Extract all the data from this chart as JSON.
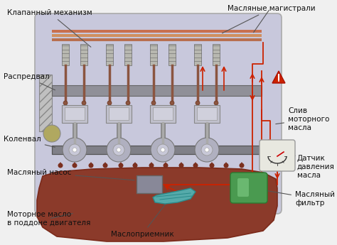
{
  "background_color": "#f0f0f0",
  "engine_body_color": "#c8c8dc",
  "engine_body_edge": "#aaaaaa",
  "oil_pan_color": "#8B3A2A",
  "oil_pan_edge": "#7B2A1A",
  "arrow_color": "#cc2200",
  "line_color": "#555555",
  "label_color": "#111111",
  "label_fontsize": 7.5,
  "labels": {
    "valve_mechanism": "Клапанный механизм",
    "cam_shaft": "Распредвал",
    "crank_shaft": "Коленвал",
    "oil_pump": "Масляный насос",
    "engine_oil": "Моторное масло\nв поддоне двигателя",
    "oil_receiver": "Маслоприемник",
    "oil_lines": "Масляные магистрали",
    "oil_drain": "Слив\nмоторного\nмасла",
    "pressure_sensor": "Датчик\nдавления\nмасла",
    "oil_filter": "Масляный\nфильтр"
  },
  "figsize": [
    4.74,
    3.45
  ],
  "dpi": 100
}
